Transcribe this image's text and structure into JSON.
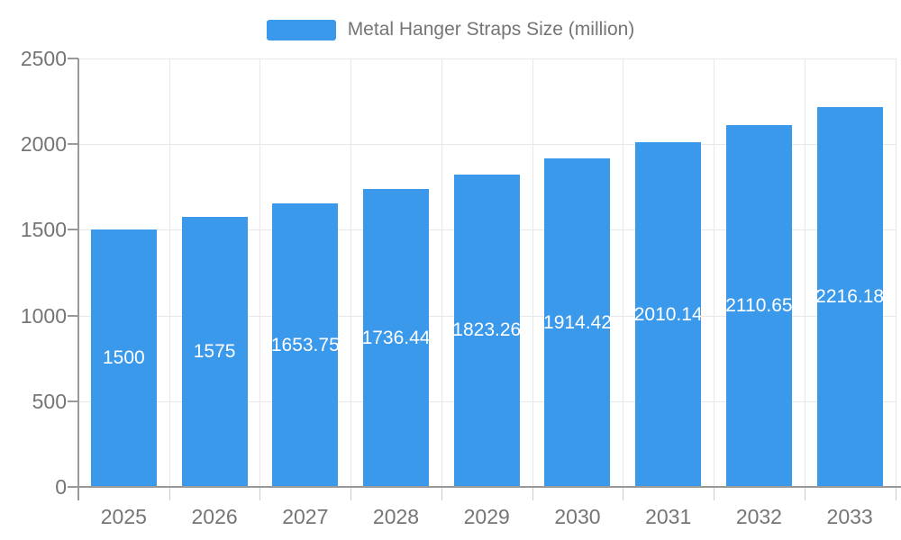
{
  "chart_data": {
    "type": "bar",
    "title": "Metal Hanger Straps Size (million)",
    "categories": [
      "2025",
      "2026",
      "2027",
      "2028",
      "2029",
      "2030",
      "2031",
      "2032",
      "2033"
    ],
    "series": [
      {
        "name": "Metal Hanger Straps Size (million)",
        "values": [
          1500,
          1575,
          1653.75,
          1736.44,
          1823.26,
          1914.42,
          2010.14,
          2110.65,
          2216.18
        ]
      }
    ],
    "bar_labels": [
      "1500",
      "1575",
      "1653.75",
      "1736.44",
      "1823.26",
      "1914.42",
      "2010.14",
      "2110.65",
      "2216.18"
    ],
    "yticks": [
      "0",
      "500",
      "1000",
      "1500",
      "2000",
      "2500"
    ],
    "ytick_values": [
      0,
      500,
      1000,
      1500,
      2000,
      2500
    ],
    "ylim": [
      0,
      2500
    ],
    "xlabel": "",
    "ylabel": "",
    "grid": true,
    "legend_position": "top-center",
    "colors": {
      "bar": "#3B99EC",
      "grid": "#E8E8E8",
      "axis": "#999999",
      "x_tick": "#CCCCCC",
      "text": "#757575",
      "bar_label": "#FFFFFF",
      "background": "#FFFFFF"
    }
  }
}
